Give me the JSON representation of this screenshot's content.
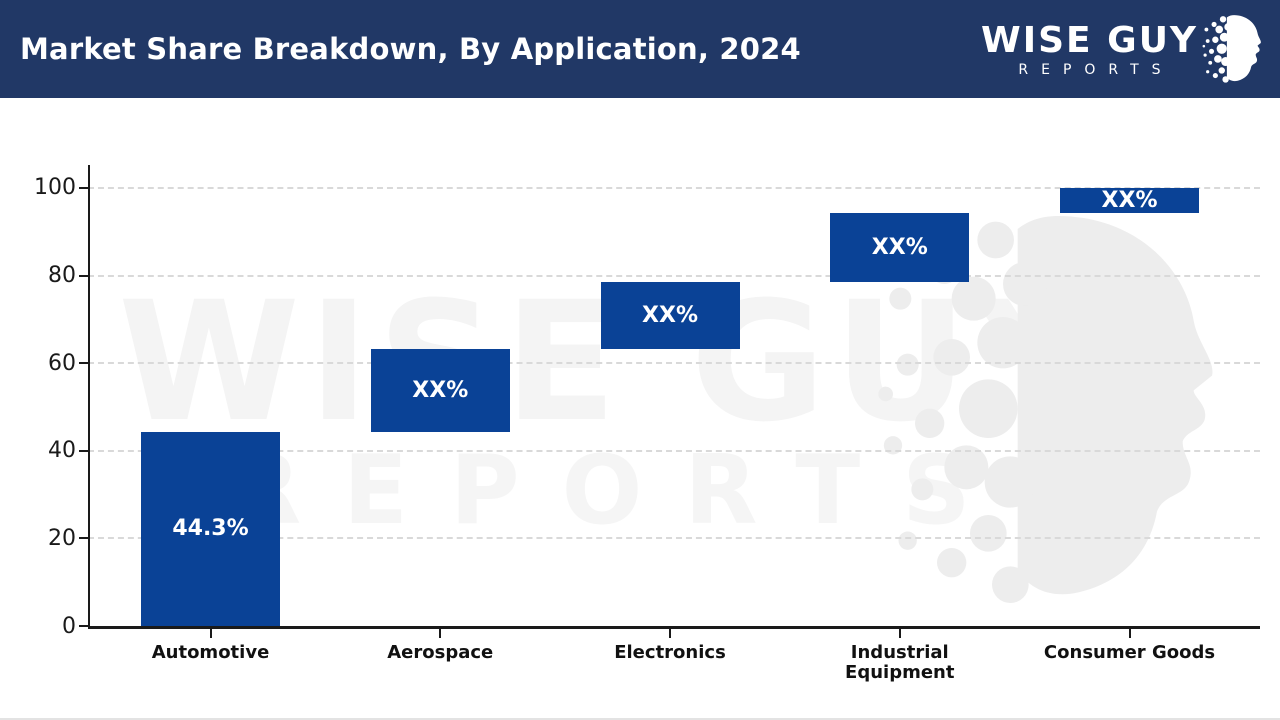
{
  "header": {
    "title": "Market Share Breakdown, By Application, 2024",
    "brand": {
      "line1": "WISE GUY",
      "line2": "REPORTS"
    }
  },
  "watermark": {
    "line1": "WISE GUY",
    "line2": "REPORTS"
  },
  "colors": {
    "header_bg": "#213866",
    "bar": "#0a4296",
    "bar_label": "#ffffff",
    "axis": "#1a1a1a",
    "grid": "#d9d9d9",
    "watermark": "#f4f4f4"
  },
  "chart_data": {
    "type": "bar",
    "subtype": "waterfall",
    "title": "Market Share Breakdown, By Application, 2024",
    "xlabel": "",
    "ylabel": "",
    "ylim": [
      0,
      105.5
    ],
    "yticks": [
      0,
      20,
      40,
      60,
      80,
      100
    ],
    "grid": "horizontal-dashed",
    "legend": "none",
    "categories": [
      "Automotive",
      "Aerospace",
      "Electronics",
      "Industrial\nEquipment",
      "Consumer Goods"
    ],
    "segments": [
      {
        "category": "Automotive",
        "start": 0,
        "end": 44.3,
        "value": 44.3,
        "label": "44.3%"
      },
      {
        "category": "Aerospace",
        "start": 44.3,
        "end": 63.2,
        "value": 18.9,
        "label": "XX%"
      },
      {
        "category": "Electronics",
        "start": 63.2,
        "end": 78.5,
        "value": 15.3,
        "label": "XX%"
      },
      {
        "category": "Industrial\nEquipment",
        "start": 78.5,
        "end": 94.3,
        "value": 15.8,
        "label": "XX%"
      },
      {
        "category": "Consumer Goods",
        "start": 94.3,
        "end": 100,
        "value": 5.7,
        "label": "XX%"
      }
    ]
  }
}
